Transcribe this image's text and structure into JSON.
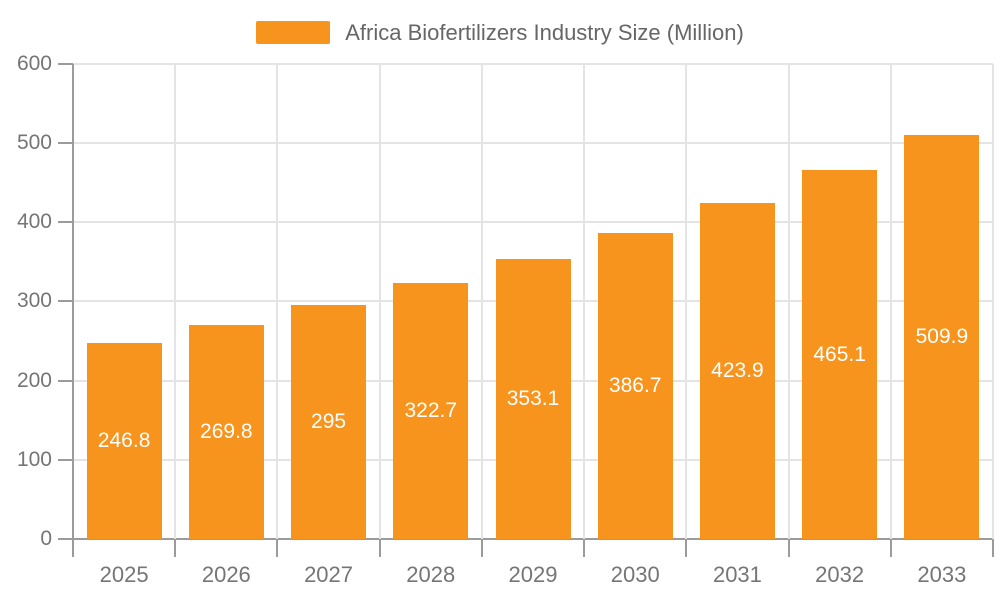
{
  "colors": {
    "bar": "#f7941e",
    "grid": "#e4e4e4",
    "axis": "#9b9b9b",
    "tick_text": "#757575",
    "bar_label": "#ffffff"
  },
  "legend": {
    "label": "Africa Biofertilizers Industry Size (Million)"
  },
  "chart_data": {
    "type": "bar",
    "title": "Africa Biofertilizers Industry Size (Million)",
    "categories": [
      "2025",
      "2026",
      "2027",
      "2028",
      "2029",
      "2030",
      "2031",
      "2032",
      "2033"
    ],
    "values": [
      246.8,
      269.8,
      295,
      322.7,
      353.1,
      386.7,
      423.9,
      465.1,
      509.9
    ],
    "xlabel": "",
    "ylabel": "",
    "ylim": [
      0,
      600
    ],
    "yticks": [
      0,
      100,
      200,
      300,
      400,
      500,
      600
    ],
    "grid": true,
    "legend_position": "top",
    "value_labels_inside_bars": true
  }
}
